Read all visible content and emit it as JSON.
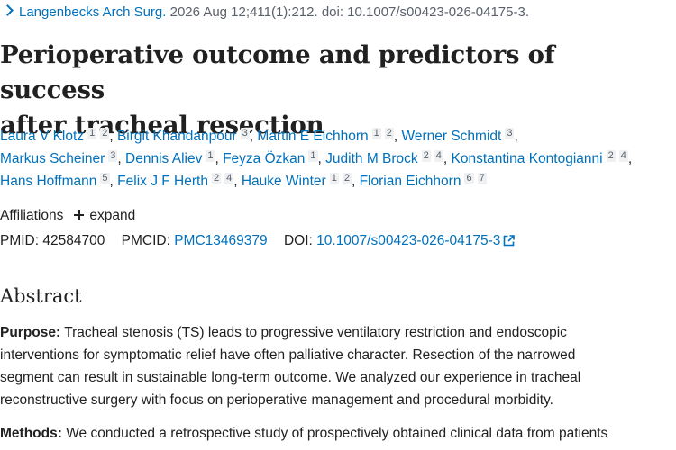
{
  "citation": {
    "journal": "Langenbecks Arch Surg.",
    "details": " 2026 Aug 12;411(1):212. doi: 10.1007/s00423-026-04175-3."
  },
  "title": {
    "line1": "Perioperative outcome and predictors of success",
    "line2": "after tracheal resection"
  },
  "authors": [
    {
      "name": "Laura V Klotz",
      "affils": [
        "1",
        "2"
      ]
    },
    {
      "name": "Birgit Khandanpour",
      "affils": [
        "3"
      ]
    },
    {
      "name": "Martin E Eichhorn",
      "affils": [
        "1",
        "2"
      ]
    },
    {
      "name": "Werner Schmidt",
      "affils": [
        "3"
      ]
    },
    {
      "name": "Markus Scheiner",
      "affils": [
        "3"
      ]
    },
    {
      "name": "Dennis Aliev",
      "affils": [
        "1"
      ]
    },
    {
      "name": "Feyza Özkan",
      "affils": [
        "1"
      ]
    },
    {
      "name": "Judith M Brock",
      "affils": [
        "2",
        "4"
      ]
    },
    {
      "name": "Konstantina Kontogianni",
      "affils": [
        "2",
        "4"
      ]
    },
    {
      "name": "Hans Hoffmann",
      "affils": [
        "5"
      ]
    },
    {
      "name": "Felix J F Herth",
      "affils": [
        "2",
        "4"
      ]
    },
    {
      "name": "Hauke Winter",
      "affils": [
        "1",
        "2"
      ]
    },
    {
      "name": "Florian Eichhorn",
      "affils": [
        "6",
        "7"
      ]
    }
  ],
  "affiliations": {
    "label": "Affiliations",
    "expand_label": "expand"
  },
  "identifiers": {
    "pmid_label": "PMID:",
    "pmid": "42584700",
    "pmcid_label": "PMCID:",
    "pmcid": "PMC13469379",
    "doi_label": "DOI:",
    "doi": "10.1007/s00423-026-04175-3"
  },
  "abstract": {
    "heading": "Abstract",
    "purpose_label": "Purpose:",
    "purpose_lines": [
      " Tracheal stenosis (TS) leads to progressive ventilatory restriction and endoscopic",
      "interventions for symptomatic relief have often palliative character. Resection of the narrowed",
      "segment can result in sustainable long-term outcome. We analyzed our experience in tracheal",
      "reconstructive surgery with focus on perioperative management and procedural morbidity."
    ],
    "methods_label": "Methods:",
    "methods_line1": " We conducted a retrospective study of prospectively obtained clinical data from patients"
  },
  "colors": {
    "link": "#0071bc",
    "text": "#212121",
    "muted": "#5b616b",
    "badge_bg": "#eef0f2"
  },
  "icons": [
    "chevron-right-icon",
    "plus-icon",
    "external-link-icon"
  ]
}
